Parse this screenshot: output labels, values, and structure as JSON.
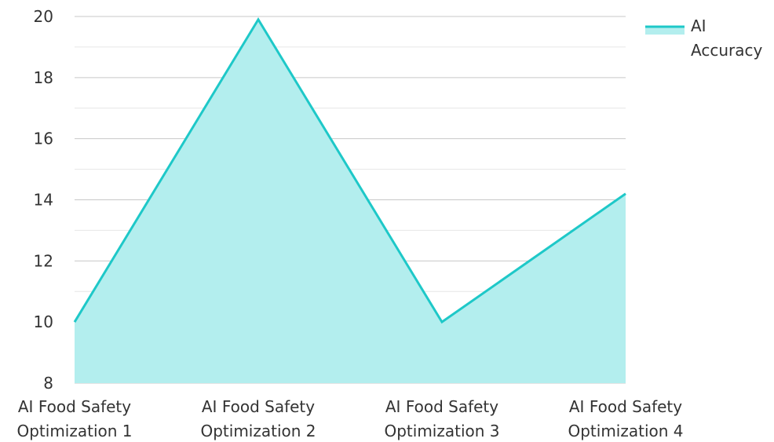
{
  "chart_data": {
    "type": "area",
    "title": "",
    "xlabel": "",
    "ylabel": "",
    "categories": [
      [
        "AI Food Safety",
        "Optimization 1"
      ],
      [
        "AI Food Safety",
        "Optimization 2"
      ],
      [
        "AI Food Safety",
        "Optimization 3"
      ],
      [
        "AI Food Safety",
        "Optimization 4"
      ]
    ],
    "series": [
      {
        "name": [
          "AI",
          "Accuracy"
        ],
        "values": [
          10,
          19.9,
          10,
          14.2
        ]
      }
    ],
    "ylim": [
      8,
      20
    ],
    "yticks": [
      "8",
      "10",
      "12",
      "14",
      "16",
      "18",
      "20"
    ],
    "grid": true,
    "legend_position": "top-right",
    "colors": {
      "line": "#1ec8c8",
      "fill": "#b3eeee",
      "major_grid": "#c8c8c8",
      "minor_grid": "#e6e6e6",
      "text": "#333333"
    }
  }
}
